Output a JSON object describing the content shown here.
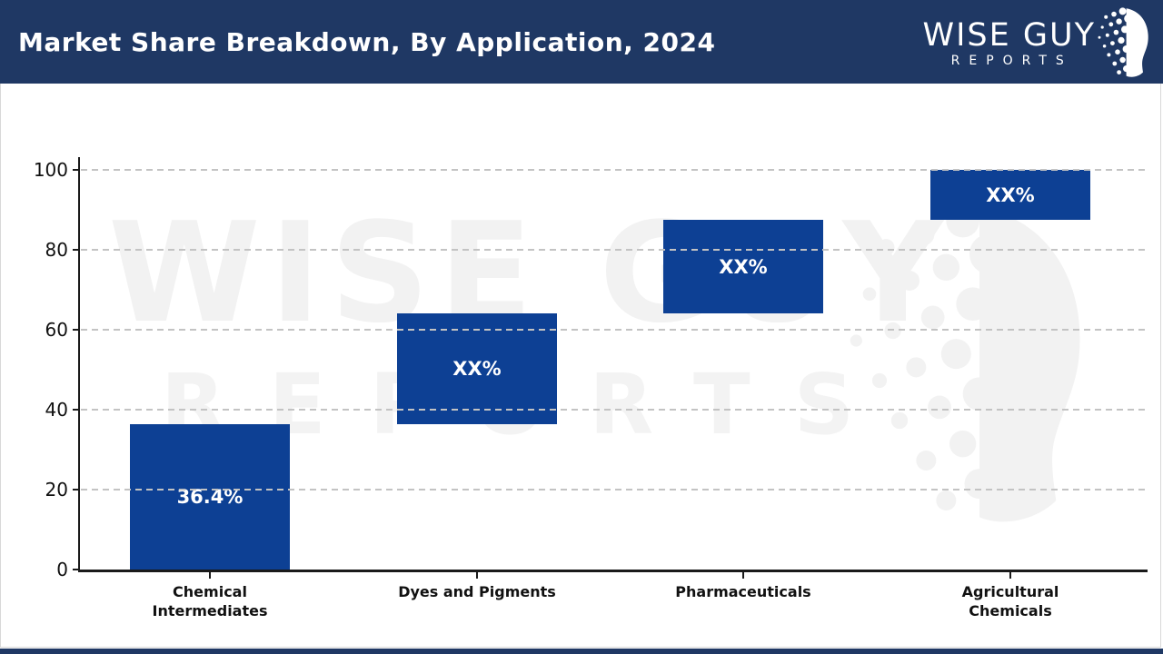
{
  "header": {
    "title": "Market Share Breakdown, By Application, 2024",
    "logo": {
      "line1": "WISE GUY",
      "line2": "REPORTS"
    },
    "bg_color": "#1f3864",
    "text_color": "#ffffff"
  },
  "watermark": {
    "line1": "WISE GUY",
    "line2": "REPORTS"
  },
  "chart_data": {
    "type": "bar",
    "subtype": "floating-waterfall",
    "title": "Market Share Breakdown, By Application, 2024",
    "xlabel": "",
    "ylabel": "",
    "categories": [
      "Chemical\nIntermediates",
      "Dyes and Pigments",
      "Pharmaceuticals",
      "Agricultural\nChemicals"
    ],
    "segments": [
      {
        "category": "Chemical Intermediates",
        "start": 0,
        "end": 36.4,
        "label": "36.4%"
      },
      {
        "category": "Dyes and Pigments",
        "start": 36.4,
        "end": 64.0,
        "label": "XX%"
      },
      {
        "category": "Pharmaceuticals",
        "start": 64.0,
        "end": 87.5,
        "label": "XX%"
      },
      {
        "category": "Agricultural Chemicals",
        "start": 87.5,
        "end": 100,
        "label": "XX%"
      }
    ],
    "y_ticks": [
      0,
      20,
      40,
      60,
      80,
      100
    ],
    "ylim": [
      0,
      103
    ],
    "grid": "dashed horizontal, drawn over bars",
    "legend": "none",
    "bar_color": "#0d4094",
    "bar_label_color": "#ffffff",
    "axis_color": "#1a1a1a",
    "gridline_color": "#c3c3c3"
  },
  "footer": {
    "bg_color": "#1f3864"
  }
}
